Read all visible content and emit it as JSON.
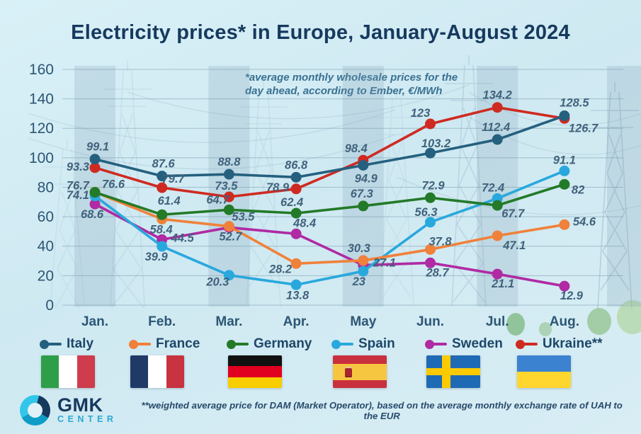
{
  "title": "Electricity prices* in Europe, January-August 2024",
  "annotation": {
    "line1": "*average monthly wholesale prices for the",
    "line2": "day ahead, according to Ember, €/MWh"
  },
  "footnote": "**weighted average price for DAM (Market Operator), based on the average monthly exchange rate of UAH to the EUR",
  "logo": {
    "name": "GMK",
    "sub": "CENTER"
  },
  "chart_data": {
    "type": "line",
    "title": "Electricity prices* in Europe, January-August 2024",
    "unit": "€/MWh",
    "categories": [
      "Jan.",
      "Feb.",
      "Mar.",
      "Apr.",
      "May",
      "Jun.",
      "Jul.",
      "Aug."
    ],
    "y_ticks": [
      0,
      20,
      40,
      60,
      80,
      100,
      120,
      140,
      160
    ],
    "ylim": [
      0,
      160
    ],
    "grid": true,
    "legend_position": "bottom",
    "series": [
      {
        "name": "Italy",
        "color": "#25607f",
        "values": [
          99.1,
          87.6,
          88.8,
          86.8,
          94.9,
          103.2,
          112.4,
          128.5
        ]
      },
      {
        "name": "France",
        "color": "#f0813a",
        "values": [
          76.7,
          58.4,
          53.5,
          28.2,
          30.3,
          37.8,
          47.1,
          54.6
        ]
      },
      {
        "name": "Germany",
        "color": "#237a28",
        "values": [
          76.6,
          61.4,
          64.7,
          62.4,
          67.3,
          72.9,
          67.7,
          82
        ]
      },
      {
        "name": "Spain",
        "color": "#29a8dd",
        "values": [
          74.1,
          39.9,
          20.3,
          13.8,
          23,
          56.3,
          72.4,
          91.1
        ]
      },
      {
        "name": "Sweden",
        "color": "#b02aa3",
        "values": [
          68.6,
          44.5,
          52.7,
          48.4,
          27.1,
          28.7,
          21.1,
          12.9
        ]
      },
      {
        "name": "Ukraine**",
        "color": "#cf2a21",
        "values": [
          93.3,
          79.7,
          73.5,
          78.9,
          98.4,
          123,
          134.2,
          126.7
        ]
      }
    ],
    "draw_order": [
      "Sweden",
      "Spain",
      "France",
      "Germany",
      "Ukraine**",
      "Italy"
    ],
    "label_offsets": {
      "Italy": [
        [
          4,
          -12,
          "m"
        ],
        [
          2,
          -12,
          "m"
        ],
        [
          0,
          -12,
          "m"
        ],
        [
          0,
          -12,
          "m"
        ],
        [
          4,
          24,
          "m"
        ],
        [
          8,
          -8,
          "m"
        ],
        [
          -2,
          -12,
          "m"
        ],
        [
          14,
          -13,
          "m"
        ]
      ],
      "France": [
        [
          -8,
          -4,
          "e"
        ],
        [
          -1,
          20,
          "m"
        ],
        [
          20,
          -8,
          "m"
        ],
        [
          -6,
          13,
          "e"
        ],
        [
          -6,
          -12,
          "m"
        ],
        [
          14,
          -6,
          "m"
        ],
        [
          8,
          19,
          "s"
        ],
        [
          12,
          1,
          "s"
        ]
      ],
      "Germany": [
        [
          10,
          -6,
          "s"
        ],
        [
          10,
          -14,
          "m"
        ],
        [
          -16,
          -9,
          "m"
        ],
        [
          -6,
          -10,
          "m"
        ],
        [
          -2,
          -12,
          "m"
        ],
        [
          4,
          -12,
          "m"
        ],
        [
          6,
          17,
          "s"
        ],
        [
          10,
          13,
          "s"
        ]
      ],
      "Spain": [
        [
          -8,
          4,
          "e"
        ],
        [
          -8,
          20,
          "m"
        ],
        [
          -16,
          15,
          "m"
        ],
        [
          2,
          20,
          "m"
        ],
        [
          -6,
          20,
          "m"
        ],
        [
          -6,
          -9,
          "m"
        ],
        [
          -6,
          -10,
          "m"
        ],
        [
          0,
          -10,
          "m"
        ]
      ],
      "Sweden": [
        [
          -4,
          20,
          "m"
        ],
        [
          13,
          3,
          "s"
        ],
        [
          2,
          18,
          "m"
        ],
        [
          12,
          -10,
          "m"
        ],
        [
          14,
          2,
          "s"
        ],
        [
          10,
          19,
          "m"
        ],
        [
          8,
          19,
          "m"
        ],
        [
          10,
          19,
          "m"
        ]
      ],
      "Ukraine**": [
        [
          -8,
          4,
          "e"
        ],
        [
          16,
          -7,
          "m"
        ],
        [
          -4,
          -10,
          "m"
        ],
        [
          -10,
          3,
          "e"
        ],
        [
          -10,
          -11,
          "m"
        ],
        [
          -14,
          -10,
          "m"
        ],
        [
          0,
          -12,
          "m"
        ],
        [
          6,
          19,
          "s"
        ]
      ]
    }
  },
  "legend": {
    "items": [
      {
        "label": "Italy",
        "color": "#25607f",
        "flag": {
          "type": "vertical",
          "colors": [
            "#2f9e49",
            "#ffffff",
            "#cf3c4b"
          ]
        }
      },
      {
        "label": "France",
        "color": "#f0813a",
        "flag": {
          "type": "vertical",
          "colors": [
            "#1f3a67",
            "#ffffff",
            "#c8333f"
          ]
        }
      },
      {
        "label": "Germany",
        "color": "#237a28",
        "flag": {
          "type": "horizontal",
          "colors": [
            "#111111",
            "#e1001f",
            "#f8ce00"
          ],
          "weights": [
            1,
            1,
            1
          ]
        }
      },
      {
        "label": "Spain",
        "color": "#29a8dd",
        "flag": {
          "type": "horizontal",
          "colors": [
            "#c9303e",
            "#f7c640",
            "#c9303e"
          ],
          "weights": [
            1,
            2,
            1
          ],
          "crest": true
        }
      },
      {
        "label": "Sweden",
        "color": "#b02aa3",
        "flag": {
          "type": "nordic",
          "field": "#1f6ab5",
          "cross": "#fdca00"
        }
      },
      {
        "label": "Ukraine**",
        "color": "#cf2a21",
        "flag": {
          "type": "horizontal",
          "colors": [
            "#3b82d1",
            "#ffd62e"
          ],
          "weights": [
            1,
            1
          ]
        }
      }
    ]
  }
}
